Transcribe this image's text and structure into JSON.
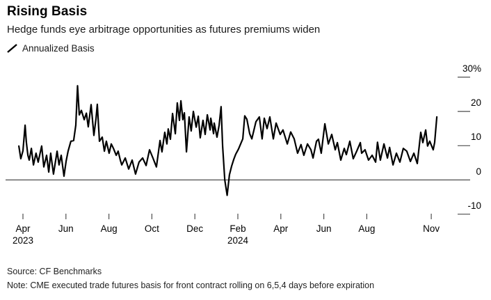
{
  "header": {
    "title": "Rising Basis",
    "subtitle": "Hedge funds eye arbitrage opportunities as futures premiums widen"
  },
  "legend": {
    "label": "Annualized Basis",
    "marker": "diagonal-line",
    "marker_color": "#000000"
  },
  "footer": {
    "source": "Source: CF Benchmarks",
    "note": "Note: CME executed trade futures basis for front contract rolling on 6,5,4 days before expiration"
  },
  "chart_data": {
    "type": "line",
    "series_name": "Annualized Basis",
    "line_color": "#000000",
    "axis_color": "#4d4d4d",
    "x_unit": "months since Apr 2023 tick",
    "ylim": [
      -10,
      30
    ],
    "y_ticks": [
      {
        "label": "30%",
        "value": 30
      },
      {
        "label": "20",
        "value": 20
      },
      {
        "label": "10",
        "value": 10
      },
      {
        "label": "0",
        "value": 0
      },
      {
        "label": "-10",
        "value": -10
      }
    ],
    "x_ticks": [
      {
        "label": "Apr",
        "m": 0,
        "year": "2023"
      },
      {
        "label": "Jun",
        "m": 2
      },
      {
        "label": "Aug",
        "m": 4
      },
      {
        "label": "Oct",
        "m": 6
      },
      {
        "label": "Dec",
        "m": 8
      },
      {
        "label": "Feb",
        "m": 10,
        "year": "2024"
      },
      {
        "label": "Apr",
        "m": 12
      },
      {
        "label": "Jun",
        "m": 14
      },
      {
        "label": "Aug",
        "m": 16
      },
      {
        "label": "Nov",
        "m": 19
      }
    ],
    "zero_line": true,
    "points": [
      [
        -0.19,
        9.9
      ],
      [
        -0.1,
        6.2
      ],
      [
        0,
        8.5
      ],
      [
        0.1,
        16
      ],
      [
        0.16,
        11
      ],
      [
        0.23,
        7.2
      ],
      [
        0.29,
        5.8
      ],
      [
        0.39,
        9.2
      ],
      [
        0.49,
        4.4
      ],
      [
        0.61,
        7.8
      ],
      [
        0.71,
        5.2
      ],
      [
        0.87,
        9.9
      ],
      [
        0.97,
        3.8
      ],
      [
        1.1,
        7.2
      ],
      [
        1.2,
        2.3
      ],
      [
        1.29,
        7.8
      ],
      [
        1.42,
        1.7
      ],
      [
        1.59,
        8.4
      ],
      [
        1.68,
        4.4
      ],
      [
        1.78,
        7.2
      ],
      [
        1.91,
        1.1
      ],
      [
        2.01,
        5.5
      ],
      [
        2.1,
        8.4
      ],
      [
        2.23,
        11.3
      ],
      [
        2.36,
        11.5
      ],
      [
        2.46,
        16
      ],
      [
        2.54,
        27.5
      ],
      [
        2.62,
        19
      ],
      [
        2.72,
        20.3
      ],
      [
        2.85,
        17.6
      ],
      [
        2.95,
        19.5
      ],
      [
        3.04,
        15.5
      ],
      [
        3.17,
        22
      ],
      [
        3.3,
        13
      ],
      [
        3.4,
        18
      ],
      [
        3.46,
        22.1
      ],
      [
        3.56,
        11.3
      ],
      [
        3.69,
        12.5
      ],
      [
        3.79,
        8.4
      ],
      [
        3.88,
        11.3
      ],
      [
        4.01,
        7.8
      ],
      [
        4.11,
        10.5
      ],
      [
        4.21,
        9.2
      ],
      [
        4.34,
        7.2
      ],
      [
        4.43,
        8.4
      ],
      [
        4.53,
        5.8
      ],
      [
        4.6,
        4.4
      ],
      [
        4.76,
        6.4
      ],
      [
        4.92,
        3.2
      ],
      [
        5.08,
        5.8
      ],
      [
        5.24,
        1.7
      ],
      [
        5.4,
        5.2
      ],
      [
        5.57,
        6.4
      ],
      [
        5.73,
        4.2
      ],
      [
        5.89,
        8.8
      ],
      [
        6.05,
        6.4
      ],
      [
        6.21,
        3.8
      ],
      [
        6.38,
        11.5
      ],
      [
        6.47,
        8.2
      ],
      [
        6.6,
        13.9
      ],
      [
        6.7,
        10.5
      ],
      [
        6.76,
        14.9
      ],
      [
        6.86,
        11.9
      ],
      [
        6.96,
        19.4
      ],
      [
        7.09,
        13.5
      ],
      [
        7.18,
        22.5
      ],
      [
        7.28,
        17.4
      ],
      [
        7.35,
        23.1
      ],
      [
        7.44,
        17.6
      ],
      [
        7.51,
        19.6
      ],
      [
        7.61,
        8.2
      ],
      [
        7.73,
        18.4
      ],
      [
        7.83,
        14.3
      ],
      [
        7.93,
        20
      ],
      [
        8.06,
        15.4
      ],
      [
        8.16,
        18.6
      ],
      [
        8.25,
        12.3
      ],
      [
        8.38,
        17.4
      ],
      [
        8.48,
        13.3
      ],
      [
        8.58,
        19
      ],
      [
        8.71,
        14.6
      ],
      [
        8.74,
        18
      ],
      [
        8.87,
        13.5
      ],
      [
        8.9,
        16.6
      ],
      [
        9.03,
        12.5
      ],
      [
        9.13,
        16
      ],
      [
        9.22,
        21.4
      ],
      [
        9.29,
        9.9
      ],
      [
        9.39,
        0
      ],
      [
        9.5,
        -4.5
      ],
      [
        9.61,
        1.5
      ],
      [
        9.71,
        4
      ],
      [
        9.81,
        6
      ],
      [
        9.9,
        7.5
      ],
      [
        10.03,
        9
      ],
      [
        10.13,
        10.5
      ],
      [
        10.23,
        12
      ],
      [
        10.32,
        18.7
      ],
      [
        10.42,
        17.7
      ],
      [
        10.55,
        13.5
      ],
      [
        10.65,
        12
      ],
      [
        10.84,
        17
      ],
      [
        11,
        18.4
      ],
      [
        11.13,
        12
      ],
      [
        11.23,
        18
      ],
      [
        11.36,
        15
      ],
      [
        11.49,
        18.4
      ],
      [
        11.65,
        12
      ],
      [
        11.78,
        16.6
      ],
      [
        11.97,
        13.3
      ],
      [
        12.1,
        14.6
      ],
      [
        12.3,
        10.5
      ],
      [
        12.46,
        14
      ],
      [
        12.62,
        12
      ],
      [
        12.78,
        7.8
      ],
      [
        12.94,
        10.3
      ],
      [
        13.07,
        7.2
      ],
      [
        13.24,
        10.5
      ],
      [
        13.4,
        8.8
      ],
      [
        13.5,
        6.4
      ],
      [
        13.66,
        11.3
      ],
      [
        13.75,
        11.9
      ],
      [
        13.88,
        7.8
      ],
      [
        14.05,
        16.4
      ],
      [
        14.21,
        10.5
      ],
      [
        14.37,
        13.3
      ],
      [
        14.53,
        8.8
      ],
      [
        14.63,
        10.9
      ],
      [
        14.79,
        5.8
      ],
      [
        14.95,
        9.2
      ],
      [
        15.05,
        7.4
      ],
      [
        15.21,
        11.3
      ],
      [
        15.37,
        6.2
      ],
      [
        15.53,
        8.4
      ],
      [
        15.7,
        10.9
      ],
      [
        15.76,
        7.8
      ],
      [
        15.92,
        8.8
      ],
      [
        16.08,
        5.8
      ],
      [
        16.25,
        7.2
      ],
      [
        16.41,
        5.2
      ],
      [
        16.5,
        11
      ],
      [
        16.63,
        5.8
      ],
      [
        16.8,
        10.5
      ],
      [
        16.96,
        6.4
      ],
      [
        17.06,
        9.5
      ],
      [
        17.22,
        4.4
      ],
      [
        17.38,
        7.8
      ],
      [
        17.54,
        5.2
      ],
      [
        17.7,
        9.2
      ],
      [
        17.86,
        8.4
      ],
      [
        18.03,
        5.4
      ],
      [
        18.19,
        7.8
      ],
      [
        18.35,
        4.8
      ],
      [
        18.51,
        13.9
      ],
      [
        18.61,
        10.9
      ],
      [
        18.74,
        14.6
      ],
      [
        18.83,
        9.9
      ],
      [
        18.93,
        11.3
      ],
      [
        19.09,
        8.8
      ],
      [
        19.16,
        11
      ],
      [
        19.26,
        18.4
      ]
    ]
  }
}
